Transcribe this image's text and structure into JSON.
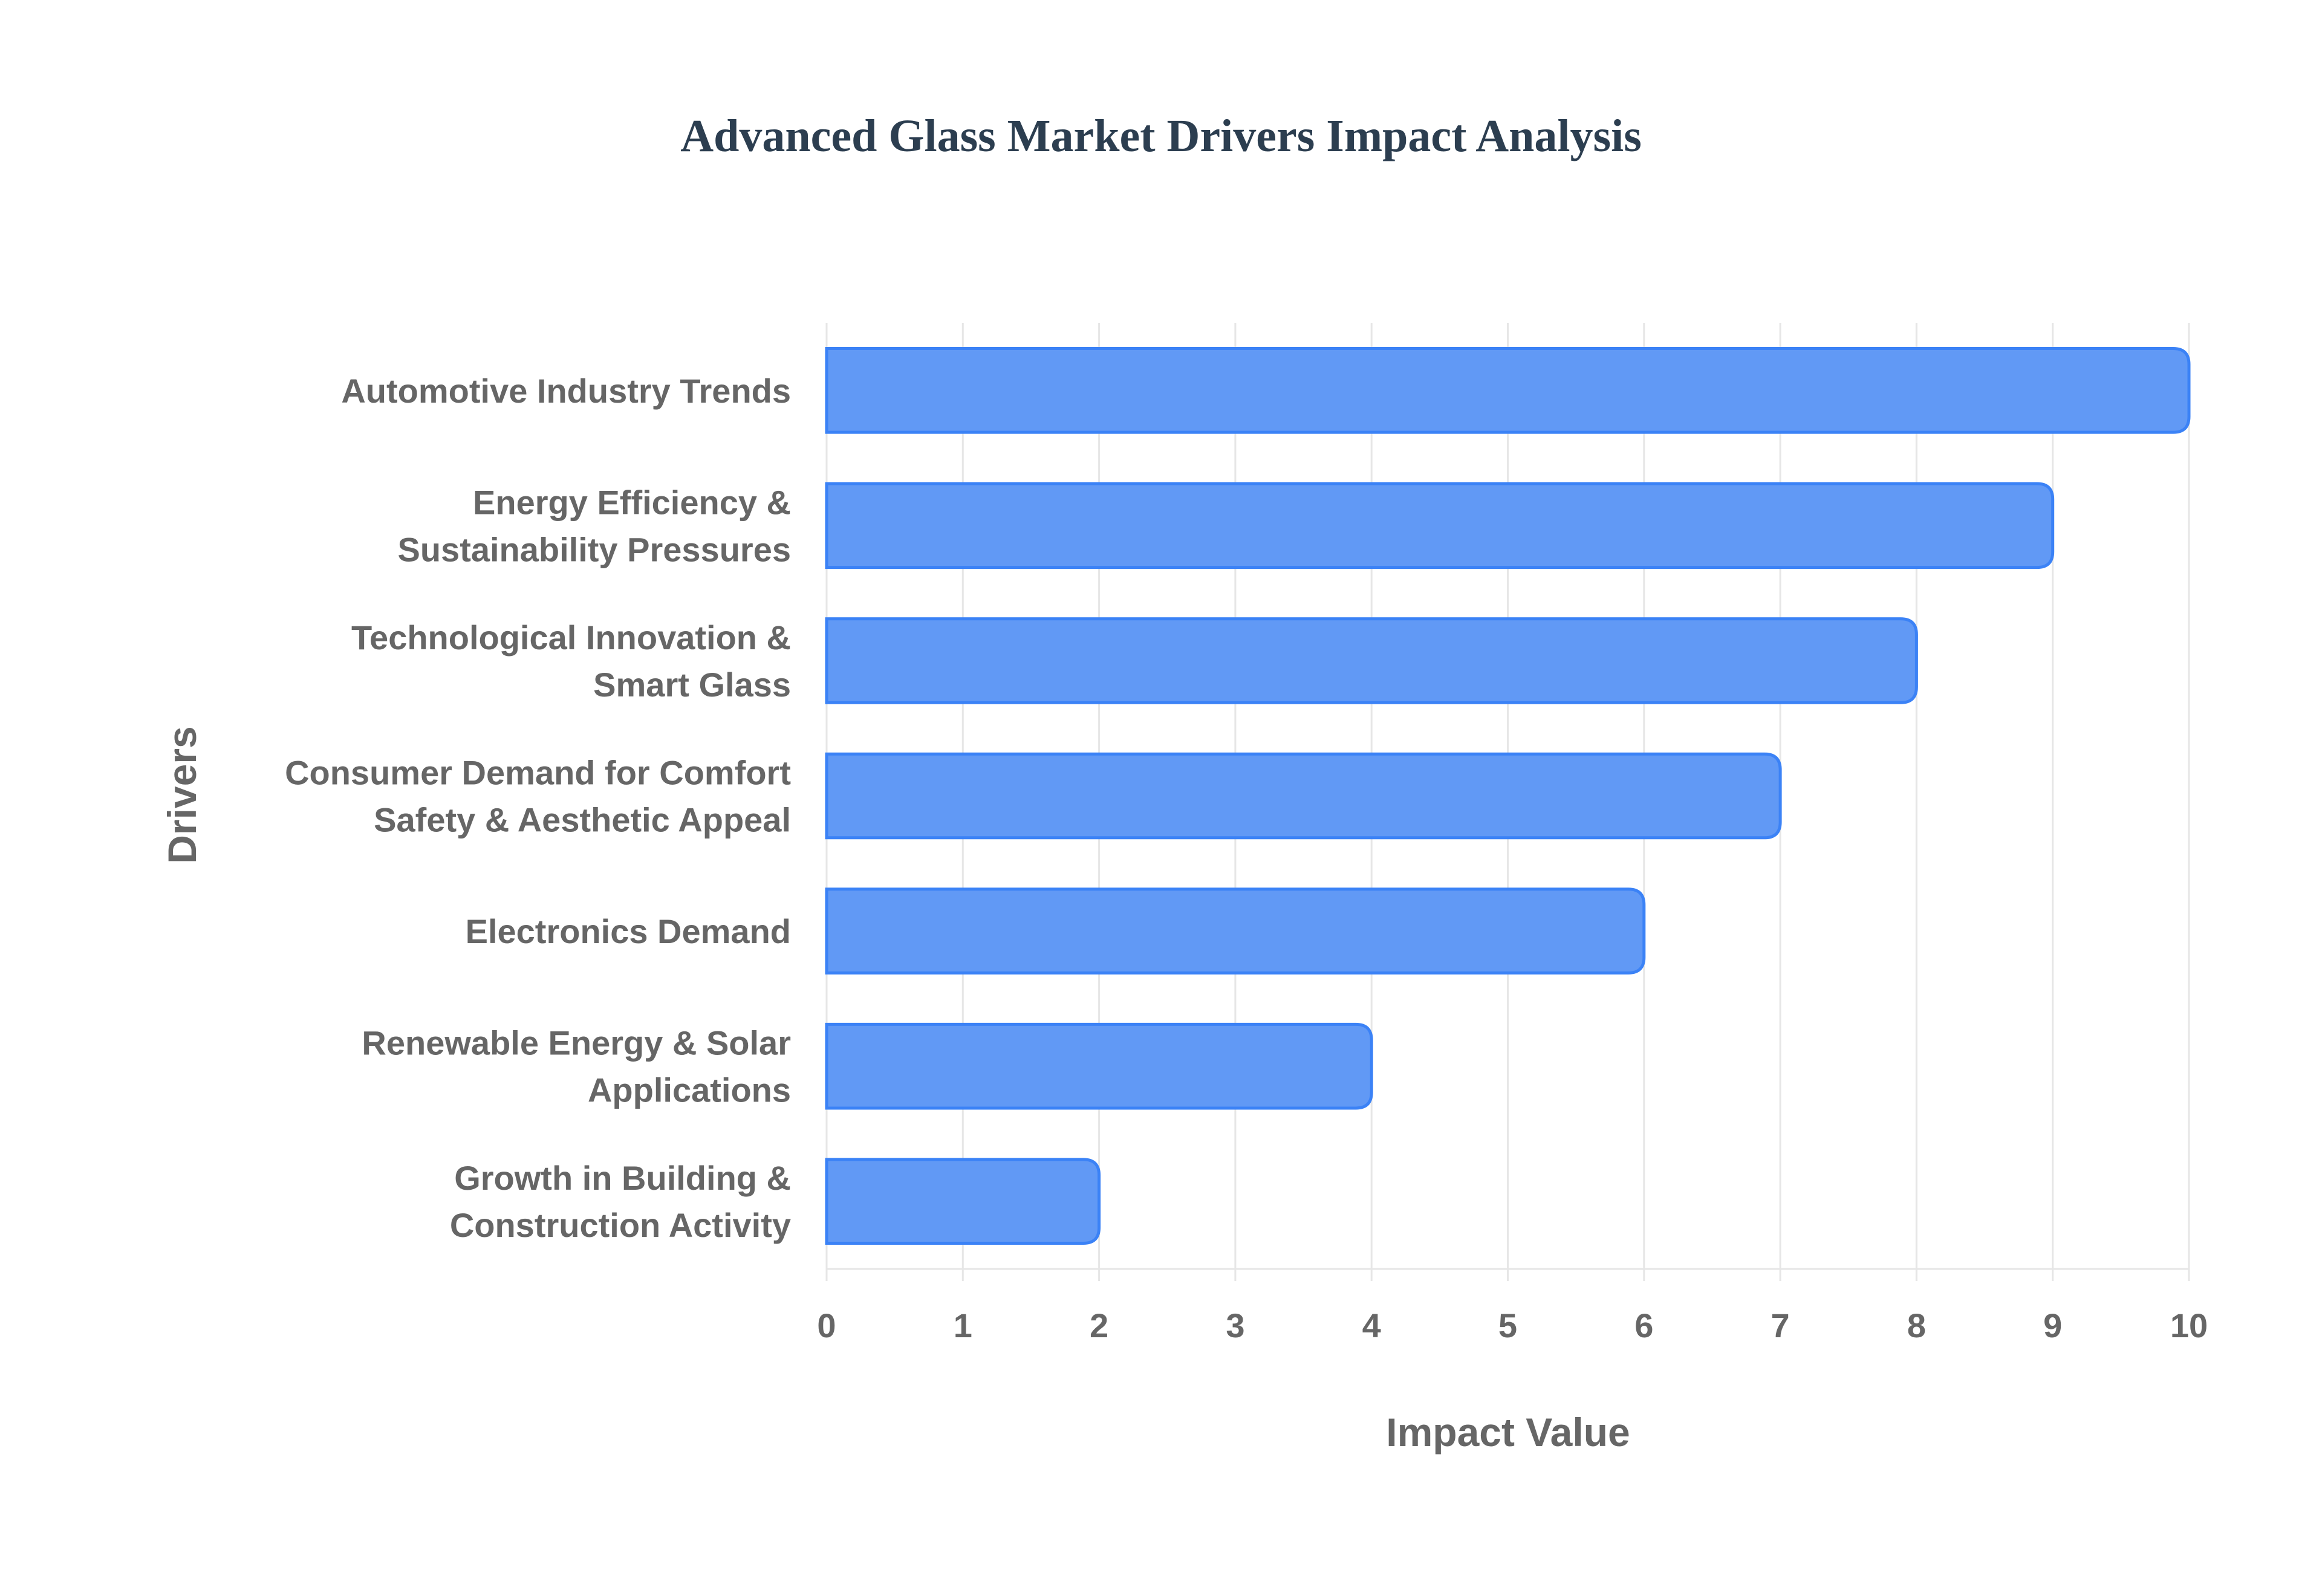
{
  "chart_data": {
    "type": "bar",
    "orientation": "horizontal",
    "title": "Advanced Glass Market Drivers Impact Analysis",
    "xlabel": "Impact Value",
    "ylabel": "Drivers",
    "xlim": [
      0,
      10
    ],
    "xticks": [
      "0",
      "1",
      "2",
      "3",
      "4",
      "5",
      "6",
      "7",
      "8",
      "9",
      "10"
    ],
    "grid": true,
    "categories": [
      [
        "Automotive Industry Trends"
      ],
      [
        "Energy Efficiency &",
        "Sustainability Pressures"
      ],
      [
        "Technological Innovation &",
        "Smart Glass"
      ],
      [
        "Consumer Demand for Comfort",
        "Safety & Aesthetic Appeal"
      ],
      [
        "Electronics Demand"
      ],
      [
        "Renewable Energy & Solar",
        "Applications"
      ],
      [
        "Growth in Building &",
        "Construction Activity"
      ]
    ],
    "values": [
      10,
      9,
      8,
      7,
      6,
      4,
      2
    ],
    "bar_color": "#6199f5",
    "bar_border": "#3b82f6"
  }
}
